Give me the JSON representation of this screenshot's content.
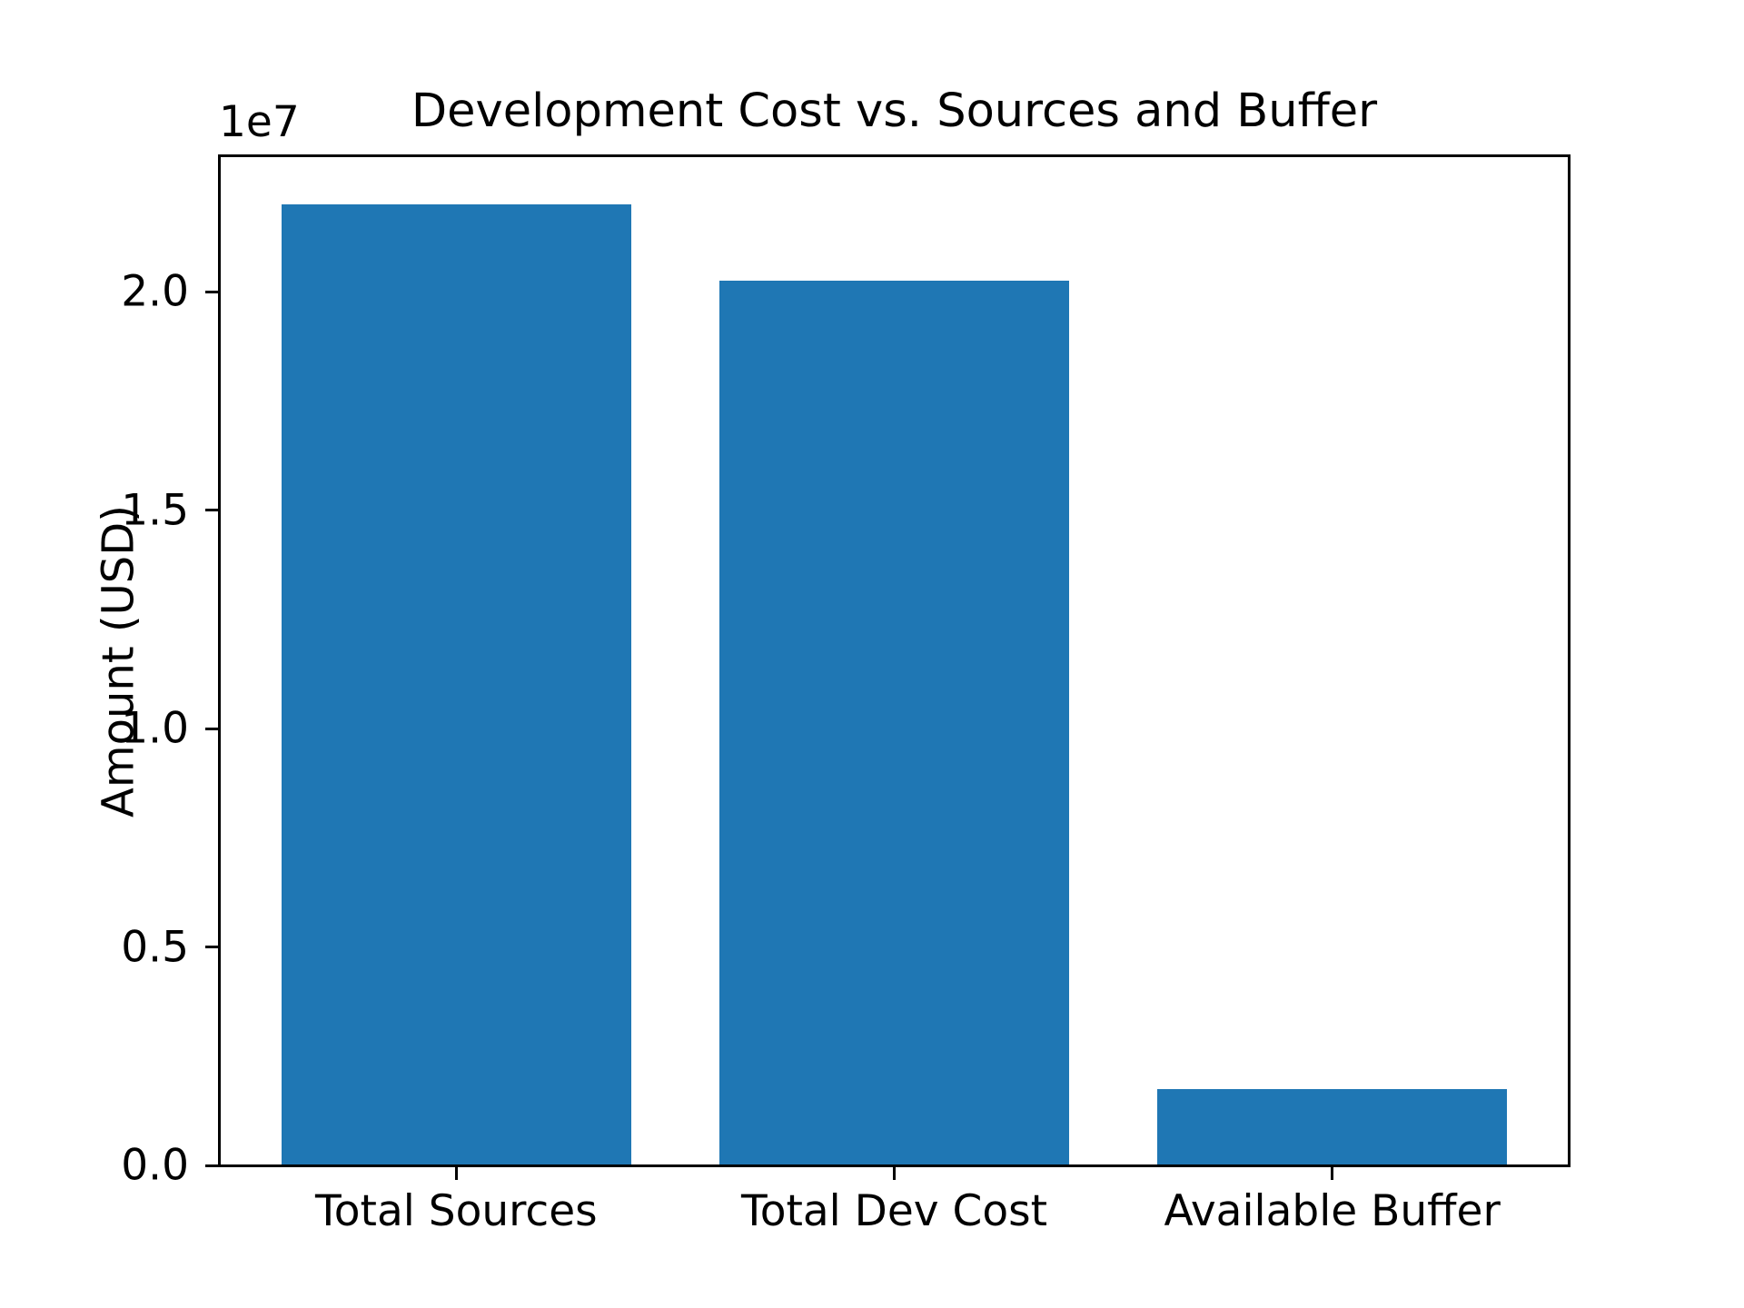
{
  "chart_data": {
    "type": "bar",
    "title": "Development Cost vs. Sources and Buffer",
    "xlabel": "",
    "ylabel": "Amount (USD)",
    "offset_text": "1e7",
    "categories": [
      "Total Sources",
      "Total Dev Cost",
      "Available Buffer"
    ],
    "values": [
      22000000,
      20250000,
      1750000
    ],
    "bar_color": "#1f77b4",
    "ylim": [
      0,
      23100000
    ],
    "yticks": {
      "values": [
        0,
        5000000,
        10000000,
        15000000,
        20000000
      ],
      "labels": [
        "0.0",
        "0.5",
        "1.0",
        "1.5",
        "2.0"
      ]
    },
    "bar_width_fraction": 0.8,
    "x_edge_margin_units": 0.54,
    "grid": false,
    "legend": false,
    "background_color": "#ffffff",
    "text_color": "#000000",
    "spine_color": "#000000"
  }
}
